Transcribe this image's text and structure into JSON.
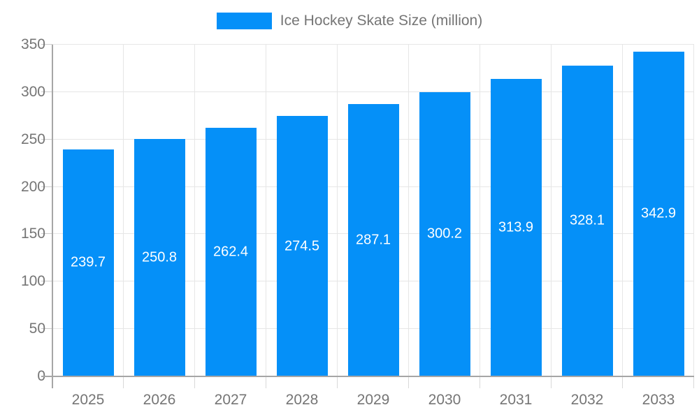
{
  "colors": {
    "bar": "#0590f8",
    "grid": "#e6e6e6",
    "axis": "#a6a6a6",
    "tick_text": "#757575",
    "value_text": "#ffffff",
    "background": "#ffffff"
  },
  "chart_data": {
    "type": "bar",
    "title": "Ice Hockey Skate Size (million)",
    "legend": [
      "Ice Hockey Skate Size (million)"
    ],
    "legend_position": "top-center",
    "categories": [
      "2025",
      "2026",
      "2027",
      "2028",
      "2029",
      "2030",
      "2031",
      "2032",
      "2033"
    ],
    "series": [
      {
        "name": "Ice Hockey Skate Size (million)",
        "values": [
          239.7,
          250.8,
          262.4,
          274.5,
          287.1,
          300.2,
          313.9,
          328.1,
          342.9
        ]
      }
    ],
    "value_labels_position": "inside-center",
    "xlabel": "",
    "ylabel": "",
    "ylim": [
      0,
      350
    ],
    "y_ticks": [
      0,
      50,
      100,
      150,
      200,
      250,
      300,
      350
    ],
    "grid": "horizontal-and-vertical"
  }
}
